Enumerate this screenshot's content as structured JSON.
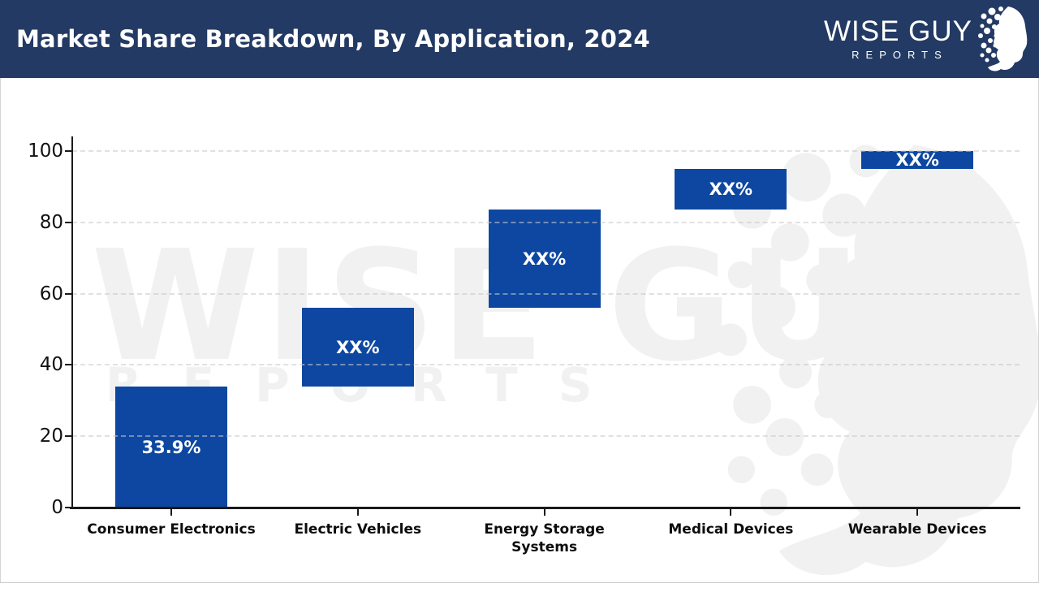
{
  "header": {
    "title": "Market Share Breakdown, By Application, 2024",
    "logo": {
      "line1": "WISE GUY",
      "line2": "REPORTS"
    }
  },
  "watermark": {
    "line1": "WISE GUY",
    "line2": "REPORTS"
  },
  "colors": {
    "header_bg": "#233A64",
    "bar_blue": "#0D47A1",
    "watermark_gray": "#F1F1F1",
    "gridline_gray": "#C9C9C9",
    "axis_black": "#1A1A1A"
  },
  "chart_data": {
    "type": "bar",
    "subtype": "waterfall",
    "title": "Market Share Breakdown, By Application, 2024",
    "categories": [
      "Consumer Electronics",
      "Electric Vehicles",
      "Energy Storage Systems",
      "Medical Devices",
      "Wearable Devices"
    ],
    "segments": [
      {
        "category": "Consumer Electronics",
        "start": 0,
        "end": 33.9,
        "label": "33.9%"
      },
      {
        "category": "Electric Vehicles",
        "start": 33.9,
        "end": 56,
        "label": "XX%"
      },
      {
        "category": "Energy Storage Systems",
        "start": 56,
        "end": 83.5,
        "label": "XX%"
      },
      {
        "category": "Medical Devices",
        "start": 83.5,
        "end": 95,
        "label": "XX%"
      },
      {
        "category": "Wearable Devices",
        "start": 95,
        "end": 100,
        "label": "XX%"
      }
    ],
    "xlabel": "",
    "ylabel": "",
    "yticks": [
      0,
      20,
      40,
      60,
      80,
      100
    ],
    "ytick_labels": [
      "0",
      "20",
      "40",
      "60",
      "80",
      "100"
    ],
    "ylim": [
      0,
      104
    ],
    "grid": "horizontal-dashed",
    "legend": "none",
    "bar_color": "#0D47A1",
    "value_label_position": "center-inside"
  }
}
